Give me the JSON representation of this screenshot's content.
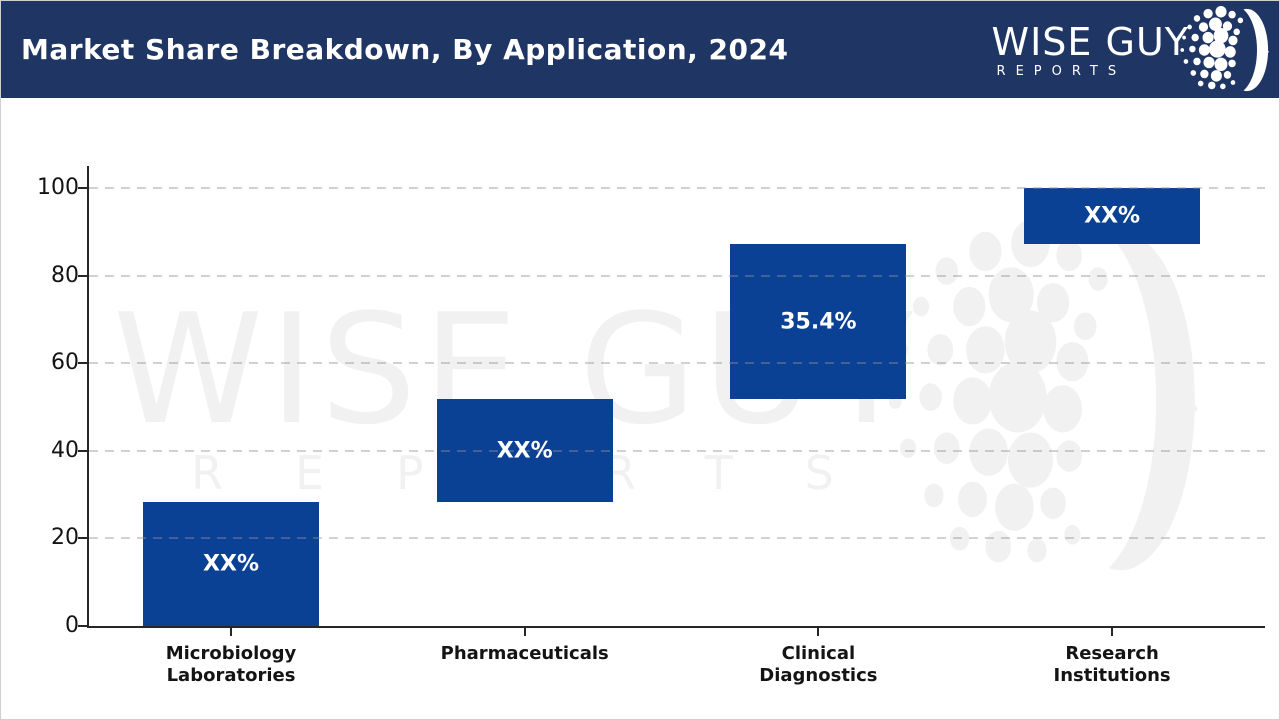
{
  "header": {
    "title": "Market Share Breakdown, By Application, 2024",
    "brand": {
      "line1": "WISE GUY",
      "line2": "REPORTS"
    }
  },
  "watermark": {
    "line1": "WISE GUY",
    "line2": "REPORTS"
  },
  "colors": {
    "header_bg": "#1f3564",
    "bar": "#0a4194",
    "value_label": "#ffffff",
    "axis": "#262626",
    "watermark": "#f1f1f1"
  },
  "chart_data": {
    "type": "bar",
    "variant": "floating-waterfall",
    "title": "Market Share Breakdown, By Application, 2024",
    "categories": [
      "Microbiology\nLaboratories",
      "Pharmaceuticals",
      "Clinical\nDiagnostics",
      "Research\nInstitutions"
    ],
    "segments": [
      {
        "category": "Microbiology Laboratories",
        "start": 0,
        "end": 28.2,
        "label": "XX%"
      },
      {
        "category": "Pharmaceuticals",
        "start": 28.2,
        "end": 51.8,
        "label": "XX%"
      },
      {
        "category": "Clinical Diagnostics",
        "start": 51.8,
        "end": 87.2,
        "label": "35.4%"
      },
      {
        "category": "Research Institutions",
        "start": 87.2,
        "end": 100,
        "label": "XX%"
      }
    ],
    "xlabel": "",
    "ylabel": "",
    "ylim": [
      0,
      100
    ],
    "yticks": [
      0,
      20,
      40,
      60,
      80,
      100
    ],
    "grid": "horizontal-dashed",
    "legend": "none",
    "bar_color": "#0a4194",
    "value_label_color": "#ffffff"
  }
}
